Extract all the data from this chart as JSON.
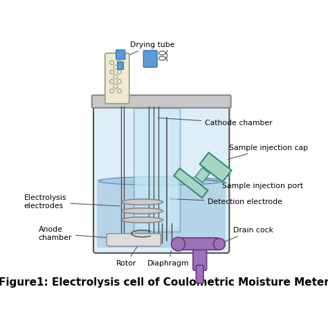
{
  "title": "Figure1: Electrolysis cell of Coulometric Moisture Meter",
  "title_fontsize": 11,
  "bg_color": "#ffffff",
  "labels": {
    "drying_tube": "Drying tube",
    "cathode_chamber": "Cathode chamber",
    "sample_injection_cap": "Sample injection cap",
    "sample_injection_port": "Sample injection port",
    "detection_electrode": "Detection electrode",
    "drain_cock": "Drain cock",
    "electrolysis_electrodes": "Electrolysis\nelectrodes",
    "anode_chamber": "Anode\nchamber",
    "rotor": "Rotor",
    "diaphragm": "Diaphragm"
  },
  "colors": {
    "vessel_outline": "#555555",
    "vessel_fill": "#ddeef8",
    "liquid_fill": "#a9cce3",
    "lid_fill": "#c8c8c8",
    "lid_outline": "#888888",
    "drying_tube_fill": "#f0ead0",
    "drying_tube_outline": "#999988",
    "blue_part_fill": "#5b9bd5",
    "blue_part_outline": "#2e75b6",
    "cathode_fill": "#c5e8f5",
    "cathode_outline": "#4488aa",
    "inner_vessel_fill": "#cce4f0",
    "inner_vessel_outline": "#5588aa",
    "electrode_fill": "#cccccc",
    "electrode_outline": "#888888",
    "anode_fill": "#dddddd",
    "syringe_fill": "#aad4c8",
    "syringe_outline": "#2e8b77",
    "drain_fill": "#9b72b8",
    "drain_outline": "#6c3483",
    "line_color": "#444444",
    "label_color": "#000000"
  }
}
